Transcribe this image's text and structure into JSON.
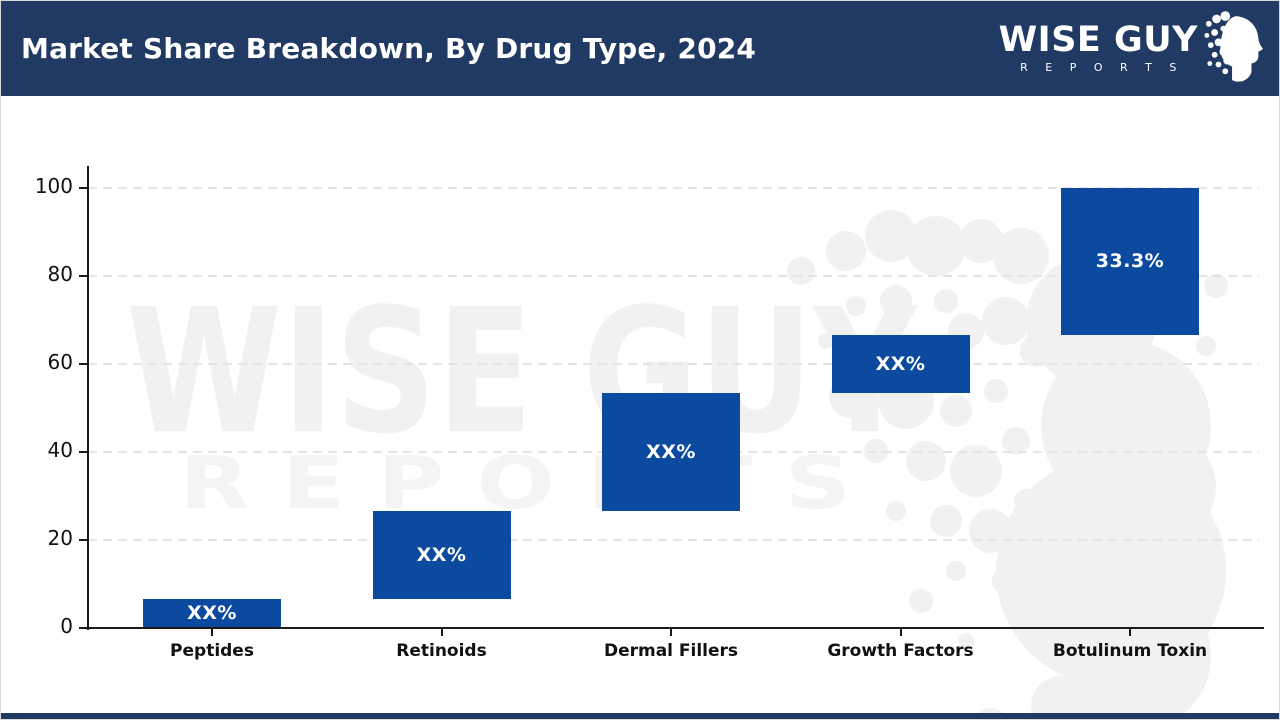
{
  "header": {
    "title": "Market Share Breakdown, By Drug Type, 2024"
  },
  "logo": {
    "wordmark": "WISE GUY",
    "subtext": "R E P O R T S"
  },
  "watermark": {
    "wordmark": "WISE GUY",
    "subtext": "R E P O R T S"
  },
  "icons": {
    "brand_head": "head-dots-icon",
    "watermark_head": "head-dots-watermark"
  },
  "colors": {
    "header_bg": "#213a63",
    "bar": "#0b4a9f",
    "bar_label": "#ffffff",
    "grid": "#e4e4e4",
    "axis": "#1a1a1a",
    "tick_text": "#111111",
    "watermark": "#f1f1f1",
    "page_border": "#d9d9d9"
  },
  "chart_data": {
    "type": "bar",
    "variant": "waterfall",
    "title": "Market Share Breakdown, By Drug Type, 2024",
    "categories": [
      "Peptides",
      "Retinoids",
      "Dermal Fillers",
      "Growth Factors",
      "Botulinum Toxin"
    ],
    "bar_starts": [
      0,
      6.7,
      26.7,
      53.3,
      66.7
    ],
    "bar_ends": [
      6.7,
      26.7,
      53.3,
      66.7,
      100
    ],
    "bar_labels": [
      "XX%",
      "XX%",
      "XX%",
      "XX%",
      "33.3%"
    ],
    "estimated_segment_values": [
      6.7,
      20,
      26.7,
      13.3,
      33.3
    ],
    "yticks": [
      0,
      20,
      40,
      60,
      80,
      100
    ],
    "ylim": [
      0,
      105
    ],
    "xlabel": "",
    "ylabel": "",
    "grid": "horizontal-dashed",
    "legend": "none"
  }
}
